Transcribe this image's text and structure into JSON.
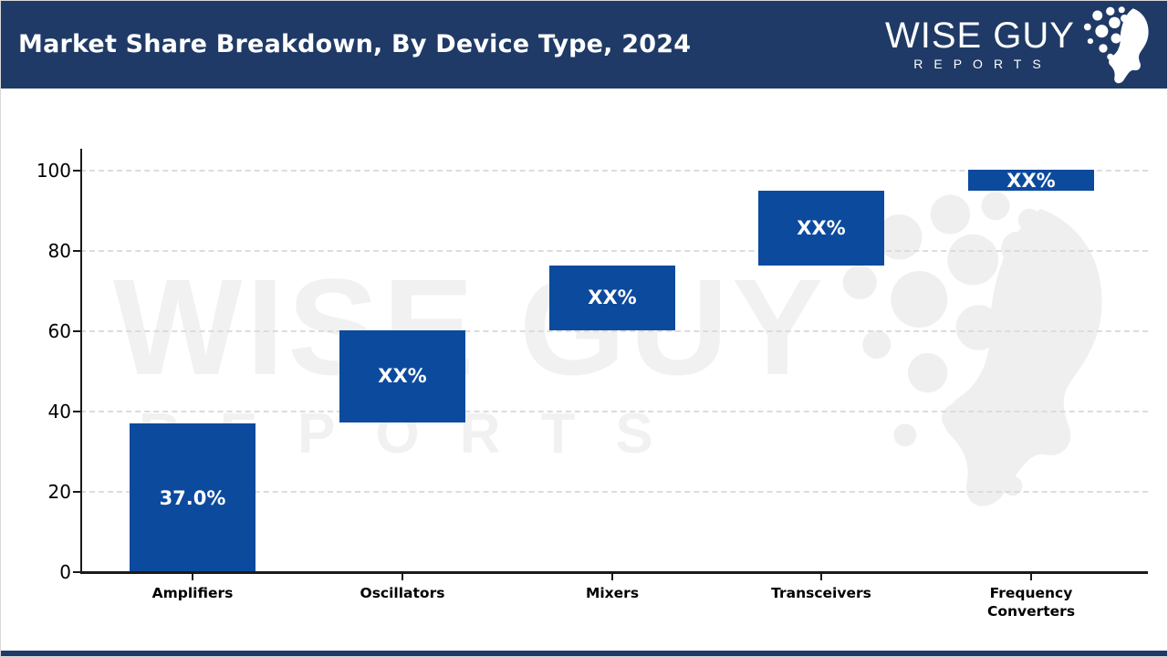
{
  "header": {
    "title": "Market Share Breakdown, By Device Type, 2024",
    "logo": {
      "line1": "WISE GUY",
      "line2": "REPORTS"
    }
  },
  "watermark": {
    "line1": "WISE GUY",
    "line2": "REPORTS"
  },
  "colors": {
    "header_bg": "#1f3a66",
    "bar_blue": "#0c4a9e",
    "gridline": "#dcdcdc",
    "watermark_gray": "#f1f1f1"
  },
  "chart_data": {
    "type": "bar",
    "subtype": "waterfall",
    "title": "Market Share Breakdown, By Device Type, 2024",
    "xlabel": "",
    "ylabel": "",
    "categories": [
      "Amplifiers",
      "Oscillators",
      "Mixers",
      "Transceivers",
      "Frequency Converters"
    ],
    "segments": [
      {
        "category": "Amplifiers",
        "start": 0,
        "end": 37,
        "label": "37.0%"
      },
      {
        "category": "Oscillators",
        "start": 37.3,
        "end": 60.2,
        "label": "XX%"
      },
      {
        "category": "Mixers",
        "start": 60.2,
        "end": 76.4,
        "label": "XX%"
      },
      {
        "category": "Transceivers",
        "start": 76.4,
        "end": 95.0,
        "label": "XX%"
      },
      {
        "category": "Frequency Converters",
        "start": 95.0,
        "end": 100.2,
        "label": "XX%"
      }
    ],
    "y_ticks": [
      0,
      20,
      40,
      60,
      80,
      100
    ],
    "ylim": [
      0,
      105
    ],
    "grid": "horizontal-dashed",
    "legend": "none",
    "watermark": "WISE GUY REPORTS"
  }
}
